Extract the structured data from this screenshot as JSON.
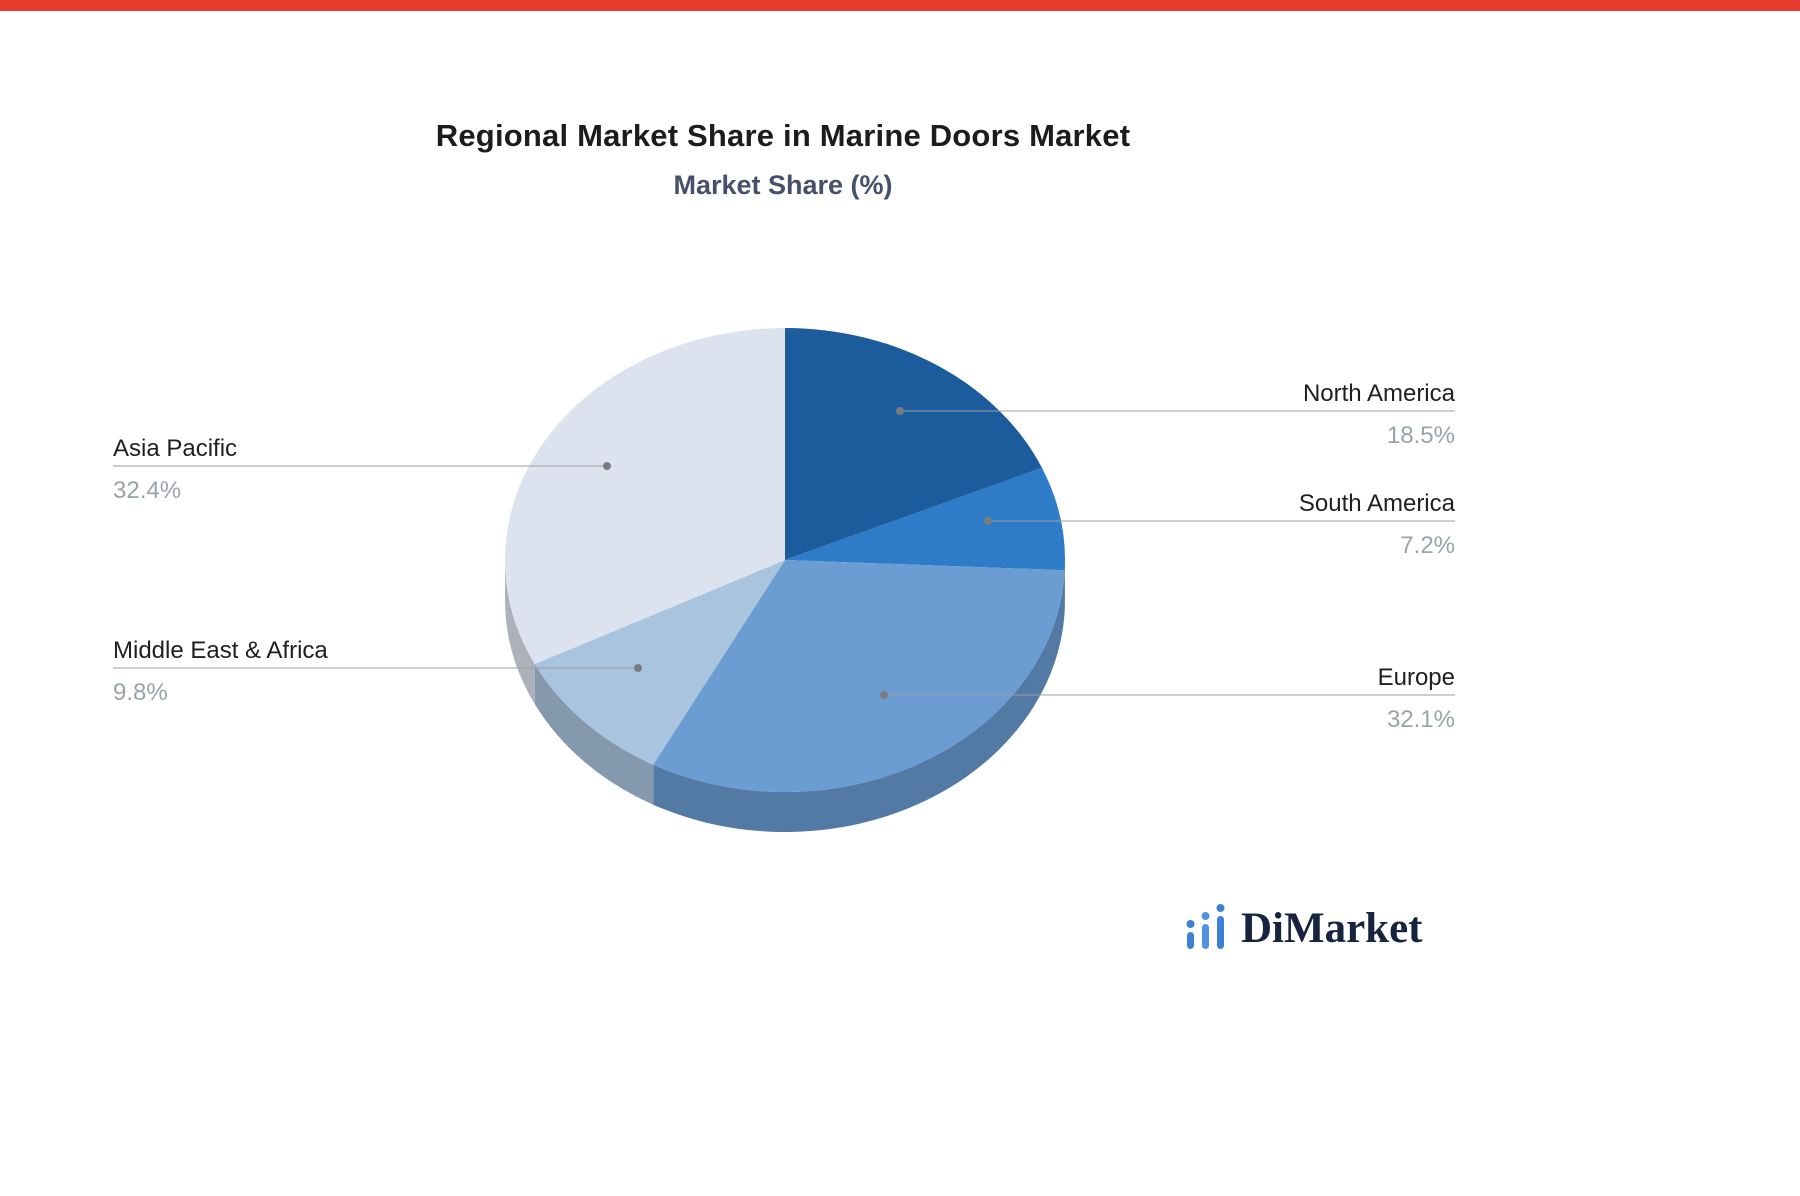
{
  "page": {
    "background": "#ffffff",
    "top_bar_color": "#e8392f"
  },
  "chart_data": {
    "type": "pie",
    "title": "Regional Market Share in Marine Doors Market",
    "subtitle": "Market Share (%)",
    "labels": [
      "North America",
      "South America",
      "Europe",
      "Middle East & Africa",
      "Asia Pacific"
    ],
    "values": [
      18.5,
      7.2,
      32.1,
      9.8,
      32.4
    ],
    "pct_labels": [
      "18.5%",
      "7.2%",
      "32.1%",
      "9.8%",
      "32.4%"
    ],
    "colors": [
      "#1c5c9c",
      "#2e7cc7",
      "#6b9cd2",
      "#a9c4de",
      "#dde3ee"
    ],
    "start_angle_deg": -90,
    "direction": "clockwise",
    "effect_3d": true,
    "legend": "callout-labels",
    "label_line_color": "#9e9ea2",
    "label_text_color": "#1f1f22",
    "value_text_color": "#9aa2ac"
  },
  "branding": {
    "logo_text": "DiMarket",
    "logo_color": "#16243f",
    "logo_icon": "bar-chart-icon",
    "icon_color": "#3b82d4"
  }
}
